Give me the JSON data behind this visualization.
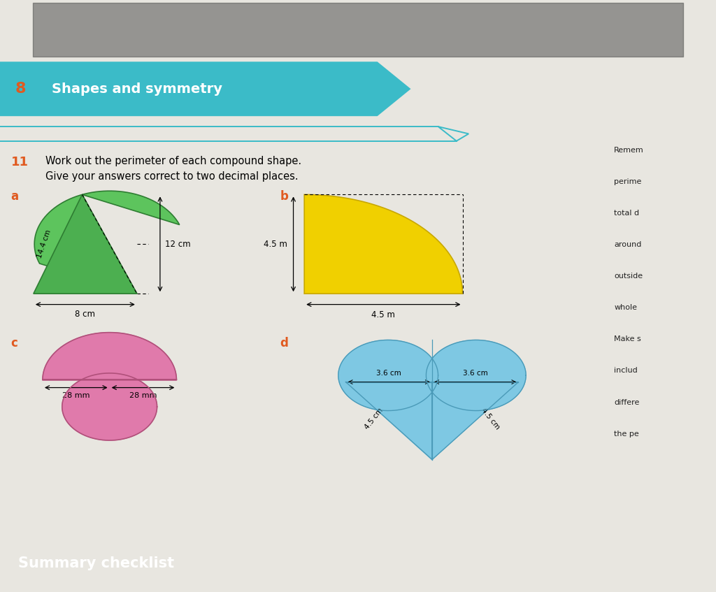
{
  "page_bg": "#e8e6e0",
  "content_bg": "#f0eeea",
  "header_banner_color": "#3bbbc8",
  "header_number_color": "#e05a20",
  "header_number": "8",
  "header_text": "Shapes and symmetry",
  "q_number": "11",
  "q_line1": "Work out the perimeter of each compound shape.",
  "q_line2": "Give your answers correct to two decimal places.",
  "label_color": "#e05a20",
  "label_a": "a",
  "label_b": "b",
  "label_c": "c",
  "label_d": "d",
  "arrow_color": "#3bbbc8",
  "shape_a_tri_color": "#4caf50",
  "shape_a_semi_color": "#5dc45d",
  "shape_a_edge": "#2e7d32",
  "shape_a_slant": "14.4 cm",
  "shape_a_height": "12 cm",
  "shape_a_base": "8 cm",
  "shape_b_color": "#f0d000",
  "shape_b_edge": "#c8a800",
  "shape_b_height": "4.5 m",
  "shape_b_base": "4.5 m",
  "shape_c_color": "#e07aab",
  "shape_c_edge": "#b0507a",
  "shape_c_left": "28 mm",
  "shape_c_right": "28 mm",
  "shape_d_color": "#7ec8e3",
  "shape_d_edge": "#4a9ab8",
  "shape_d_tl": "3.6 cm",
  "shape_d_tr": "3.6 cm",
  "shape_d_bl": "4.5 cm",
  "shape_d_br": "4.5 cm",
  "yellow_box_color": "#f5e860",
  "yellow_text": [
    "Remem",
    "perime",
    "total d",
    "around",
    "outside",
    "whole",
    "Make s",
    "includ",
    "differe",
    "the pe"
  ],
  "summary_bg": "#3bbbc8",
  "summary_text": "Summary checklist",
  "top_bg": "#888888"
}
